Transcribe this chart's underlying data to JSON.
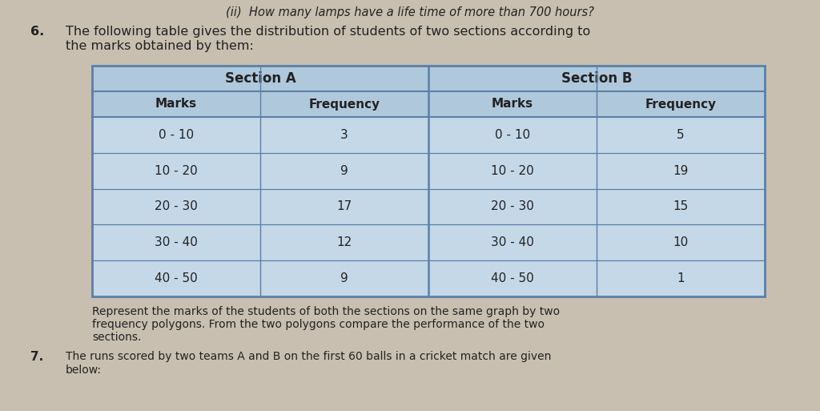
{
  "title_number": "6.",
  "title_text": "The following table gives the distribution of students of two sections according to\nthe marks obtained by them:",
  "section_a_header": "Section A",
  "section_b_header": "Section B",
  "col_headers": [
    "Marks",
    "Frequency",
    "Marks",
    "Frequency"
  ],
  "section_a_marks": [
    "0 - 10",
    "10 - 20",
    "20 - 30",
    "30 - 40",
    "40 - 50"
  ],
  "section_a_freq": [
    "3",
    "9",
    "17",
    "12",
    "9"
  ],
  "section_b_marks": [
    "0 - 10",
    "10 - 20",
    "20 - 30",
    "30 - 40",
    "40 - 50"
  ],
  "section_b_freq": [
    "5",
    "19",
    "15",
    "10",
    "1"
  ],
  "footer_line1": "Represent the marks of the students of both the sections on the same graph by two",
  "footer_line2": "frequency polygons. From the two polygons compare the performance of the two",
  "footer_line3": "sections.",
  "item7_number": "7.",
  "item7_text": "The runs scored by two teams A and B on the first 60 balls in a cricket match are given\nbelow:",
  "top_text": "(ii)  How many lamps have a life time of more than 700 hours?",
  "table_bg": "#c5d8e8",
  "table_border": "#5a7fa8",
  "header_bg": "#b0c8dc",
  "text_color": "#222222",
  "body_bg": "#c8bfb0"
}
